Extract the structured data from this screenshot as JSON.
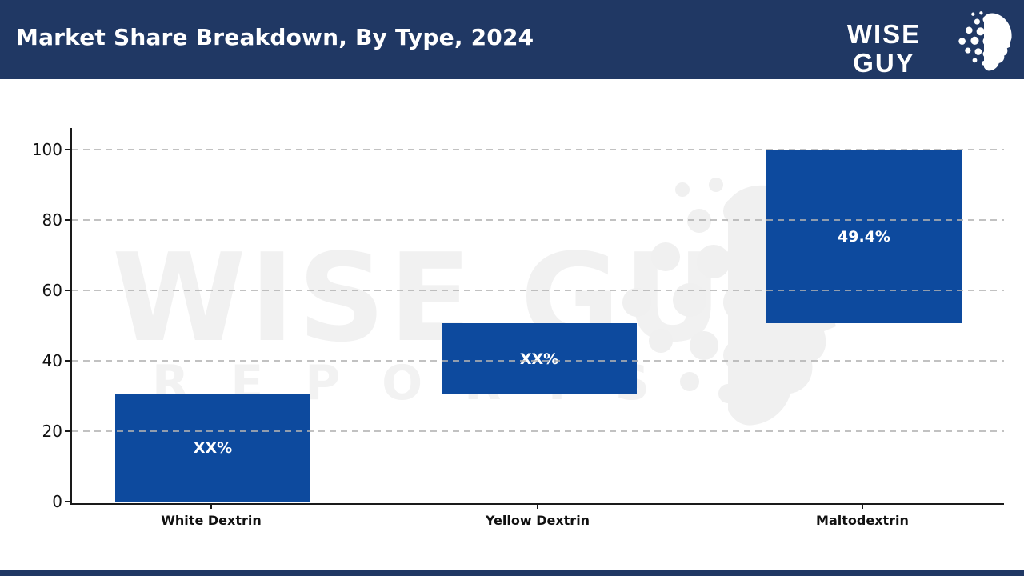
{
  "header": {
    "title": "Market Share Breakdown, By Type, 2024",
    "logo": {
      "brand_top": "WISE GUY",
      "brand_bottom": "REPORTS"
    },
    "background_color": "#203864"
  },
  "watermark": {
    "line1": "WISE GUY",
    "line2": "REPORTS"
  },
  "footer": {
    "bar_color": "#203864"
  },
  "chart_data": {
    "type": "bar",
    "subtype": "floating_segment_bars",
    "title": "Market Share Breakdown, By Type, 2024",
    "categories": [
      "White Dextrin",
      "Yellow Dextrin",
      "Maltodextrin"
    ],
    "bars": [
      {
        "category": "White Dextrin",
        "start": 0,
        "end": 30.4,
        "value_label": "XX%"
      },
      {
        "category": "Yellow Dextrin",
        "start": 30.4,
        "end": 50.6,
        "value_label": "XX%"
      },
      {
        "category": "Maltodextrin",
        "start": 50.6,
        "end": 100,
        "value_label": "49.4%"
      }
    ],
    "y_ticks": [
      0,
      20,
      40,
      60,
      80,
      100
    ],
    "ylim": [
      0,
      106
    ],
    "xlabel": "",
    "ylabel": "",
    "grid": "horizontal dashed, drawn over bars",
    "legend": false,
    "bar_color": "#0D4A9E",
    "bar_label_color": "#FFFFFF",
    "grid_color": "#C8C8C8",
    "axis_color": "#1A1A1A"
  }
}
